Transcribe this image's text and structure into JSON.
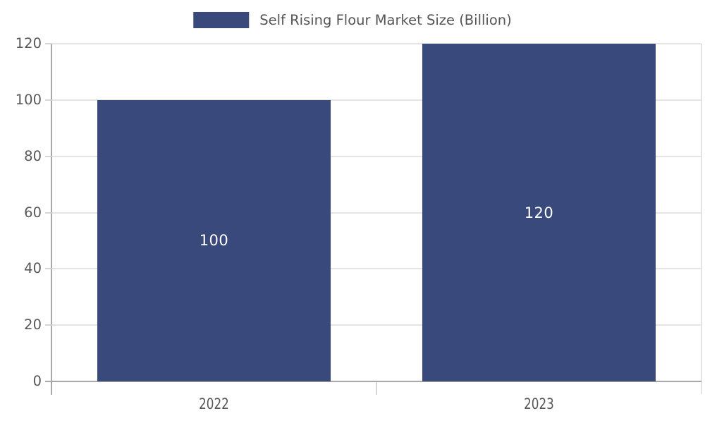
{
  "legend": {
    "label": "Self Rising Flour Market Size (Billion)"
  },
  "chart_data": {
    "type": "bar",
    "title": "Self Rising Flour Market Size (Billion)",
    "categories": [
      "2022",
      "2023"
    ],
    "values": [
      100,
      120
    ],
    "bar_labels": [
      "100",
      "120"
    ],
    "xlabel": "",
    "ylabel": "",
    "ylim": [
      0,
      120
    ],
    "yticks": [
      0,
      20,
      40,
      60,
      80,
      100,
      120
    ],
    "grid": true,
    "legend_position": "top-center",
    "colors": {
      "bar": "#39497C",
      "grid": "#E4E4E4",
      "axis": "#A8A8A8",
      "tick": "#D6D6D6",
      "tick_label": "#58585A",
      "legend_label": "#555555",
      "bar_label": "#FFFFFF",
      "background": "#FFFFFF"
    }
  }
}
